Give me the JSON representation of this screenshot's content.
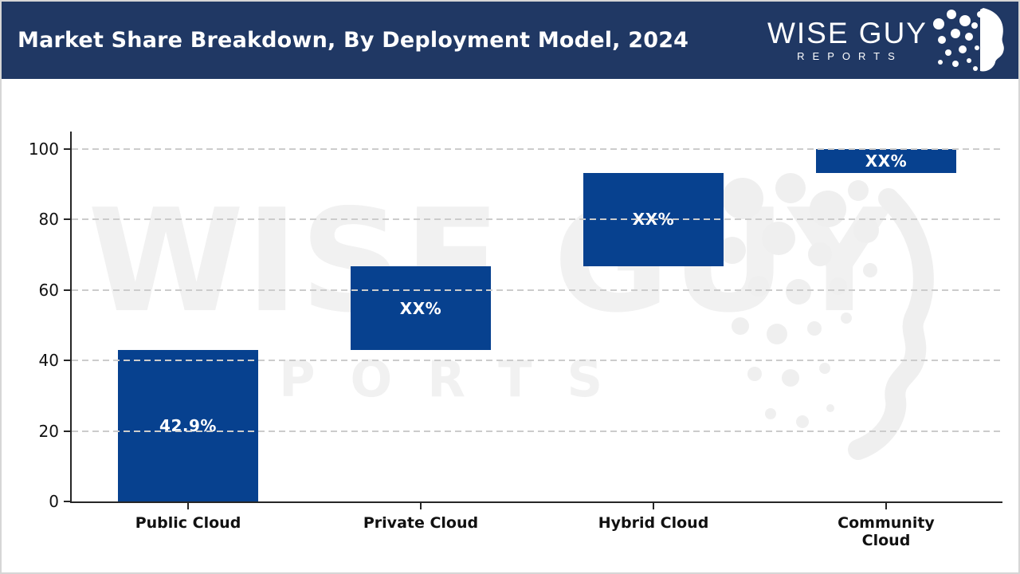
{
  "header": {
    "title": "Market Share Breakdown, By Deployment Model, 2024",
    "logo": {
      "line1": "WISE GUY",
      "line2": "REPORTS"
    }
  },
  "watermark": {
    "line1": "WISE GUY",
    "line2": "REPORTS"
  },
  "colors": {
    "header_bg": "#203864",
    "bar": "#07418f",
    "grid": "#cccccc",
    "axis": "#262626",
    "watermark": "#f1f1f1",
    "title_text": "#ffffff",
    "bar_label_text": "#ffffff"
  },
  "chart_data": {
    "type": "bar",
    "subtype": "waterfall-breakdown",
    "title": "Market Share Breakdown, By Deployment Model, 2024",
    "categories": [
      "Public Cloud",
      "Private Cloud",
      "Hybrid Cloud",
      "Community Cloud"
    ],
    "segments": [
      {
        "start": 0,
        "end": 42.9,
        "label": "42.9%"
      },
      {
        "start": 42.9,
        "end": 66.7,
        "label": "XX%"
      },
      {
        "start": 66.7,
        "end": 93.3,
        "label": "XX%"
      },
      {
        "start": 93.3,
        "end": 100,
        "label": "XX%"
      }
    ],
    "segment_sizes_estimated": [
      42.9,
      23.8,
      26.6,
      6.7
    ],
    "unit": "%",
    "yticks": [
      0,
      20,
      40,
      60,
      80,
      100
    ],
    "ylim": [
      0,
      105
    ],
    "xlabel": "",
    "ylabel": "",
    "grid": "horizontal dashed, drawn above bars",
    "legend": "none"
  }
}
